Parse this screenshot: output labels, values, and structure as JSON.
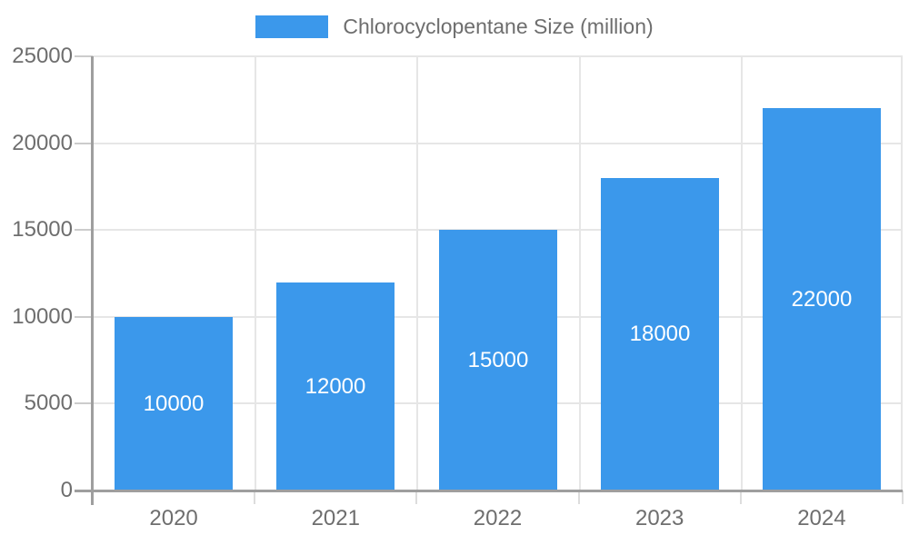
{
  "legend": {
    "label": "Chlorocyclopentane Size (million)"
  },
  "chart_data": {
    "type": "bar",
    "title": "",
    "legend": "Chlorocyclopentane Size (million)",
    "legend_position": "top-center",
    "categories": [
      "2020",
      "2021",
      "2022",
      "2023",
      "2024"
    ],
    "values": [
      10000,
      12000,
      15000,
      18000,
      22000
    ],
    "value_labels": [
      "10000",
      "12000",
      "15000",
      "18000",
      "22000"
    ],
    "value_label_placement": "centered-inside-bar",
    "xlabel": "",
    "ylabel": "",
    "ylim": [
      0,
      25000
    ],
    "y_ticks": [
      0,
      5000,
      10000,
      15000,
      20000,
      25000
    ],
    "y_tick_labels": [
      "0",
      "5000",
      "10000",
      "15000",
      "20000",
      "25000"
    ],
    "grid": true,
    "colors": {
      "bar": "#3b98eb",
      "value_text": "#ffffff",
      "axis_text": "#6e6e6e",
      "axis_line": "#9e9e9e",
      "gridline": "#e6e6e6",
      "tick": "#cccccc",
      "background": "#ffffff"
    }
  }
}
